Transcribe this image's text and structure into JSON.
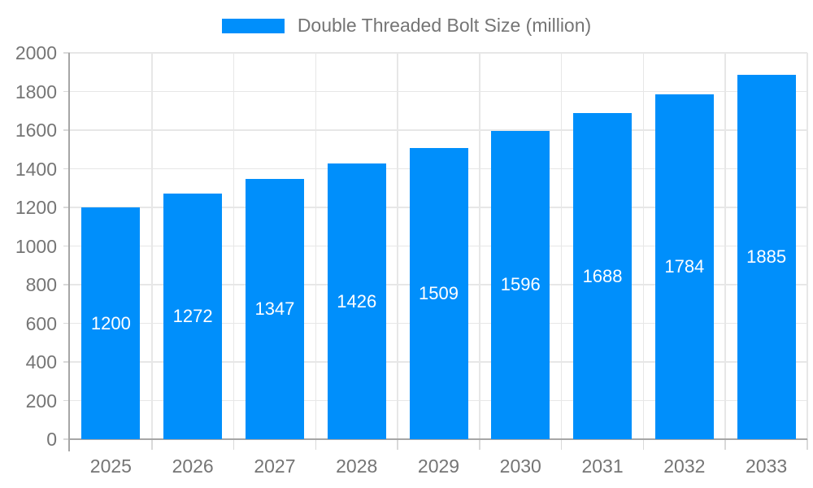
{
  "chart_data": {
    "type": "bar",
    "title": "",
    "legend": {
      "label": "Double Threaded Bolt Size (million)",
      "position": "top-center",
      "marker": "rect"
    },
    "categories": [
      "2025",
      "2026",
      "2027",
      "2028",
      "2029",
      "2030",
      "2031",
      "2032",
      "2033"
    ],
    "series": [
      {
        "name": "Double Threaded Bolt Size (million)",
        "values": [
          1200,
          1272,
          1347,
          1426,
          1509,
          1596,
          1688,
          1784,
          1885
        ]
      }
    ],
    "bar_value_labels": [
      "1200",
      "1272",
      "1347",
      "1426",
      "1509",
      "1596",
      "1688",
      "1784",
      "1885"
    ],
    "xlabel": "",
    "ylabel": "",
    "ylim": [
      0,
      2000
    ],
    "ytick_step": 200,
    "ytick_labels": [
      "0",
      "200",
      "400",
      "600",
      "800",
      "1000",
      "1200",
      "1400",
      "1600",
      "1800",
      "2000"
    ],
    "grid": true,
    "colors": {
      "bar": "#008FFB",
      "bar_label_text": "#FFFFFF",
      "axis_text": "#757575",
      "legend_text": "#757575",
      "gridline": "#E7E7E7",
      "tick": "#D9D9D9",
      "axis_line": "#A6A6A6"
    }
  }
}
